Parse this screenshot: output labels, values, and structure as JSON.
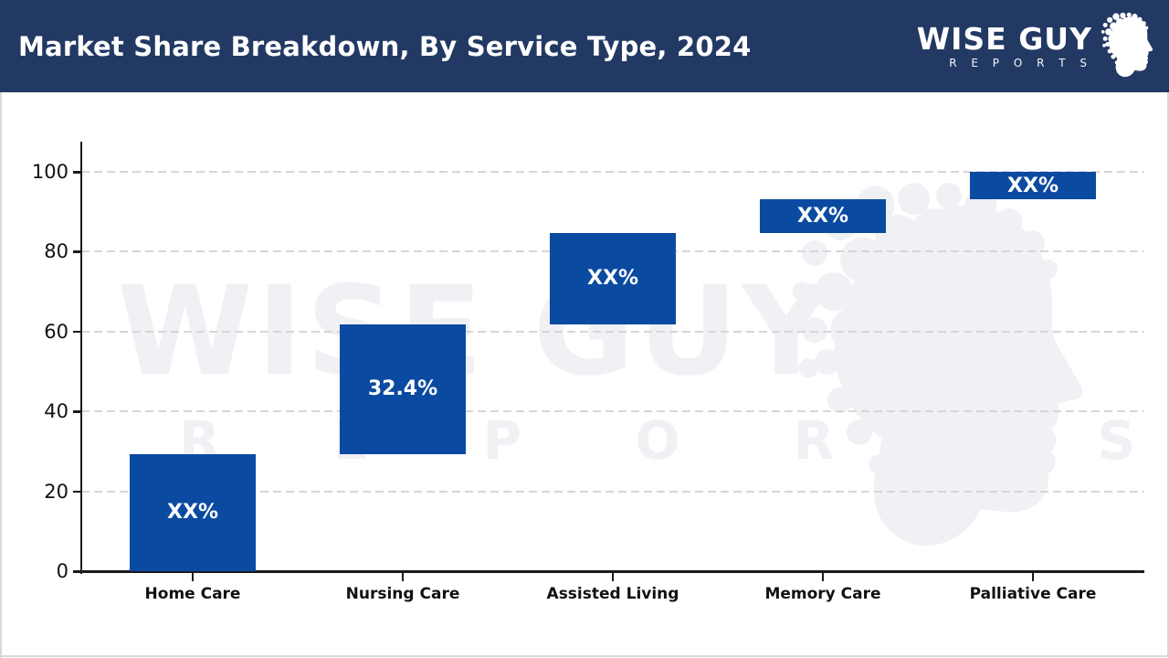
{
  "header": {
    "title": "Market Share Breakdown, By Service Type, 2024",
    "bg_color": "#223963",
    "logo": {
      "brand": "WISE GUY",
      "sub": "R E P O R T S"
    }
  },
  "watermark": {
    "brand": "WISE GUY",
    "sub": "R E P O R T S"
  },
  "chart_data": {
    "type": "bar",
    "subtype": "floating-waterfall",
    "title": "Market Share Breakdown, By Service Type, 2024",
    "categories": [
      "Home Care",
      "Nursing Care",
      "Assisted Living",
      "Memory Care",
      "Palliative Care"
    ],
    "segments": [
      {
        "category": "Home Care",
        "start": 0,
        "end": 29.4,
        "label": "XX%"
      },
      {
        "category": "Nursing Care",
        "start": 29.4,
        "end": 61.8,
        "label": "32.4%"
      },
      {
        "category": "Assisted Living",
        "start": 61.8,
        "end": 84.7,
        "label": "XX%"
      },
      {
        "category": "Memory Care",
        "start": 84.7,
        "end": 93.1,
        "label": "XX%"
      },
      {
        "category": "Palliative Care",
        "start": 93.1,
        "end": 100,
        "label": "XX%"
      }
    ],
    "yticks": [
      0,
      20,
      40,
      60,
      80,
      100
    ],
    "ylim": [
      0,
      106
    ],
    "xlabel": "",
    "ylabel": "",
    "grid": "horizontal-dashed",
    "legend_position": "none",
    "colors": {
      "bar": "#0B4AA1",
      "bar_label": "#FFFFFF",
      "grid": "#D6D6D6",
      "axis": "#1A1A1A",
      "tick_label": "#111111",
      "header_bg": "#223963",
      "watermark": "#F0F1F4"
    }
  }
}
